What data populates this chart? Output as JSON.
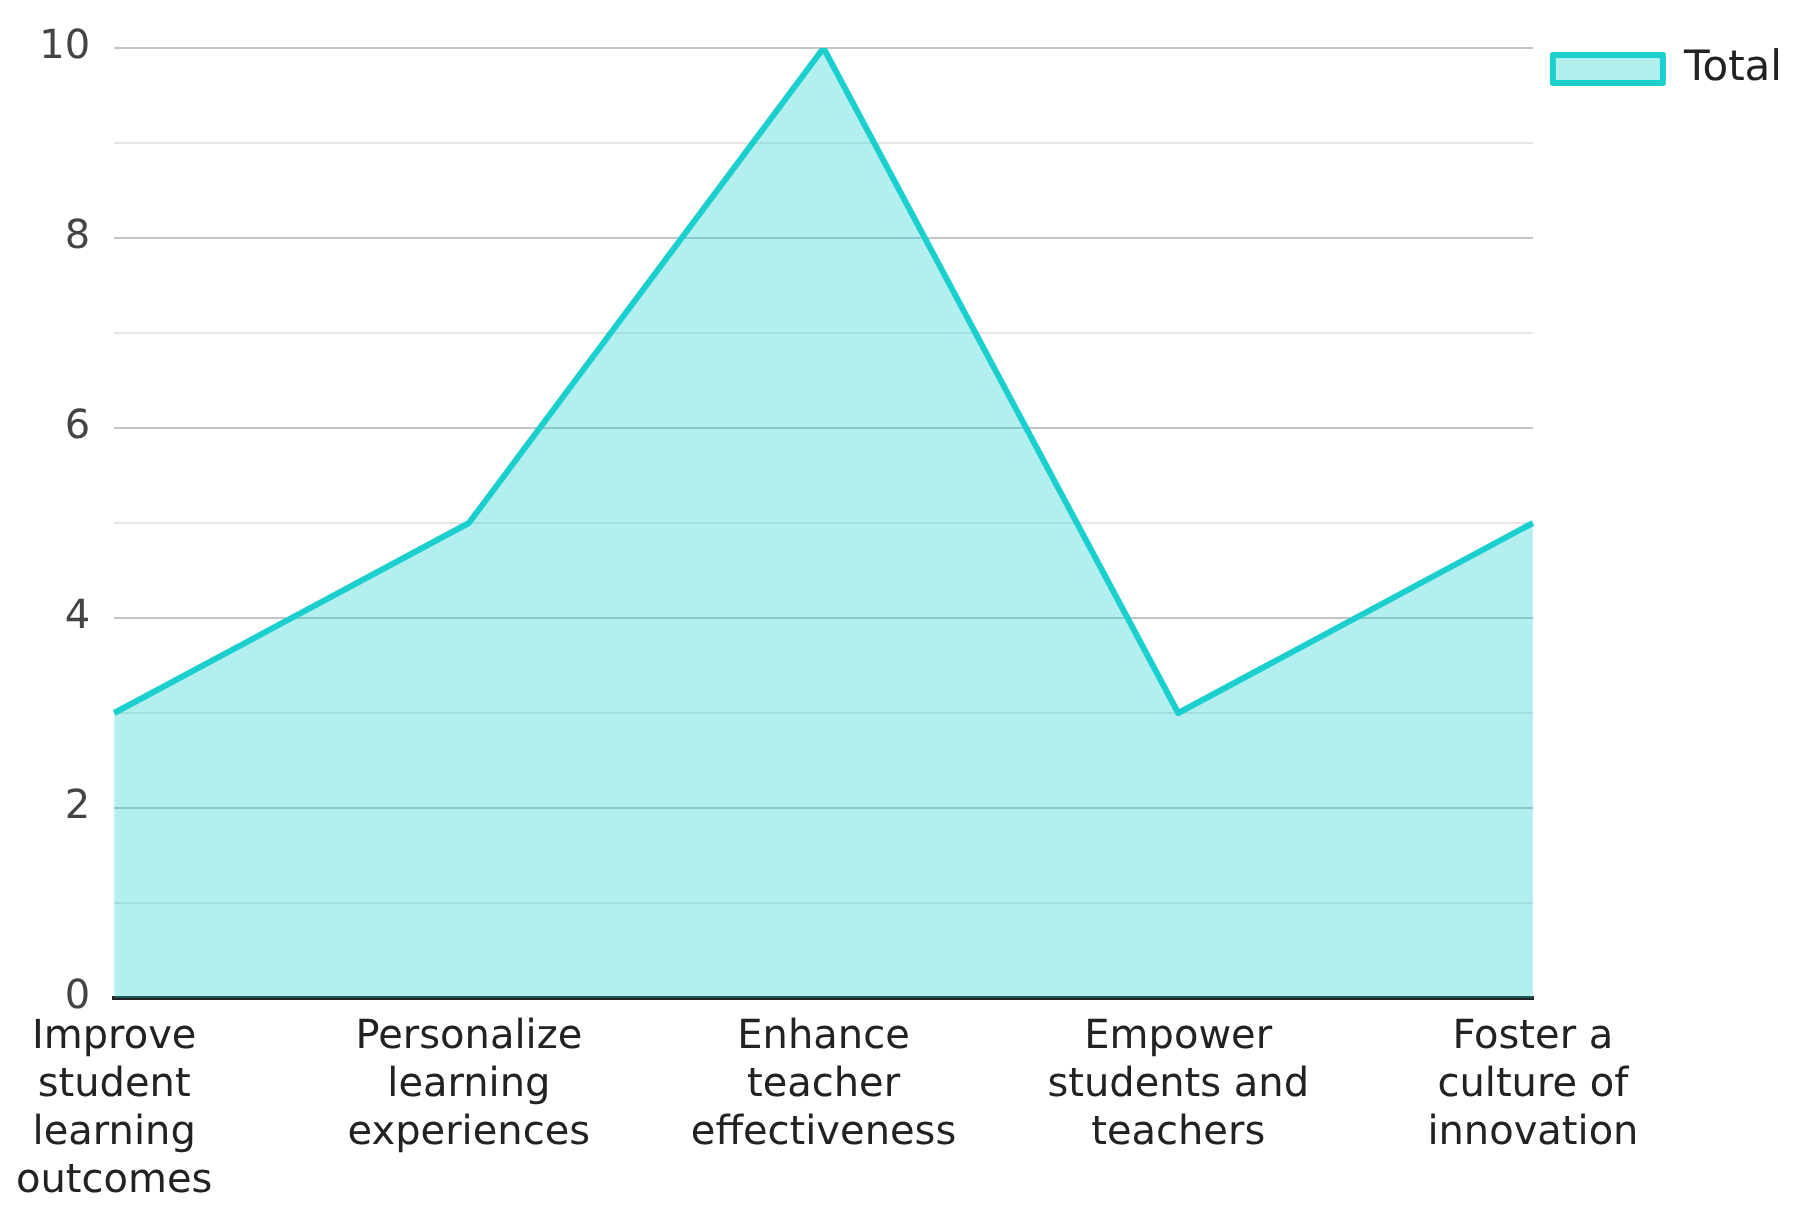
{
  "chart_data": {
    "type": "area",
    "categories": [
      "Improve student learning outcomes",
      "Personalize learning experiences",
      "Enhance teacher effectiveness",
      "Empower students and teachers",
      "Foster a culture of innovation"
    ],
    "series": [
      {
        "name": "Total",
        "color": "#1ccfcf",
        "values": [
          3,
          5,
          10,
          3,
          5
        ]
      }
    ],
    "ylim": [
      0,
      10
    ],
    "yticks": [
      0,
      {
        "value": 1,
        "label": null
      },
      2,
      {
        "value": 3,
        "label": null
      },
      4,
      {
        "value": 5,
        "label": null
      },
      6,
      {
        "value": 7,
        "label": null
      },
      8,
      {
        "value": 9,
        "label": null
      },
      10
    ],
    "grid": "y",
    "legend": "top right"
  }
}
